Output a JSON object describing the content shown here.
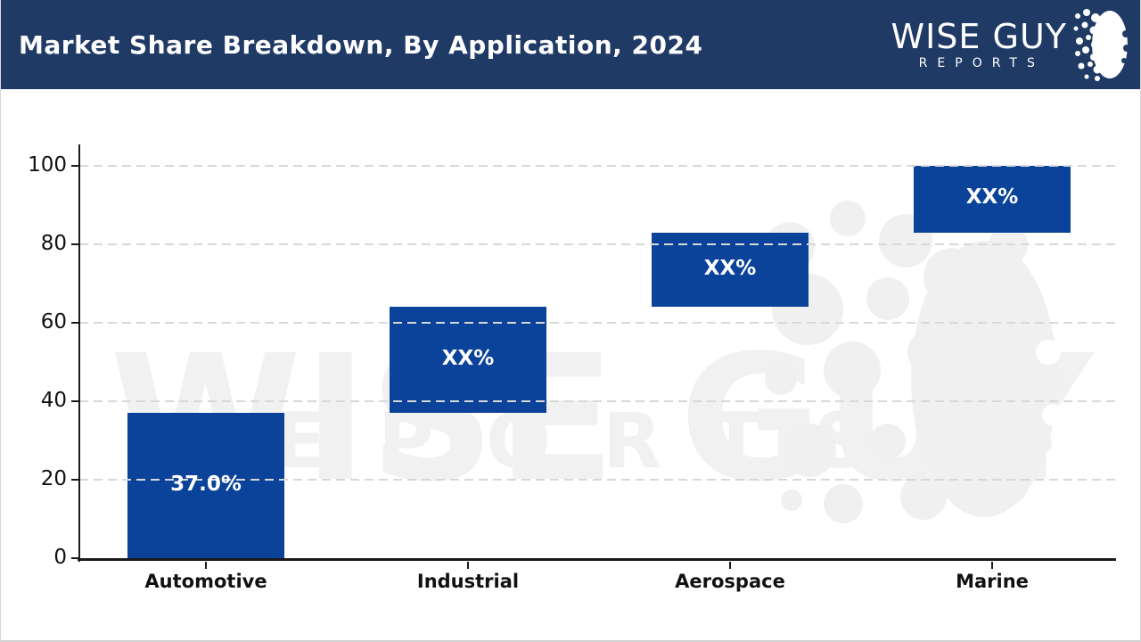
{
  "header": {
    "title": "Market Share Breakdown, By Application, 2024",
    "bg_color": "#203a66",
    "logo": {
      "line1": "WISE GUY",
      "line2": "REPORTS"
    }
  },
  "watermark": {
    "line1": "WISE GUY",
    "line2": "REPORTS"
  },
  "chart_data": {
    "type": "bar",
    "variant": "floating-segment-breakdown",
    "title": "Market Share Breakdown, By Application, 2024",
    "categories": [
      "Automotive",
      "Industrial",
      "Aerospace",
      "Marine"
    ],
    "segments": [
      {
        "category": "Automotive",
        "start": 0,
        "end": 37,
        "label": "37.0%"
      },
      {
        "category": "Industrial",
        "start": 37,
        "end": 64,
        "label": "XX%"
      },
      {
        "category": "Aerospace",
        "start": 64,
        "end": 83,
        "label": "XX%"
      },
      {
        "category": "Marine",
        "start": 83,
        "end": 100,
        "label": "XX%"
      }
    ],
    "y_ticks": [
      0,
      20,
      40,
      60,
      80,
      100
    ],
    "ylim": [
      0,
      105
    ],
    "xlabel": "",
    "ylabel": "",
    "grid": "horizontal-dashed",
    "legend": "none",
    "bar_color": "#0a4399",
    "grid_color": "#d8d8d8",
    "axis_color": "#1a1a1a"
  }
}
